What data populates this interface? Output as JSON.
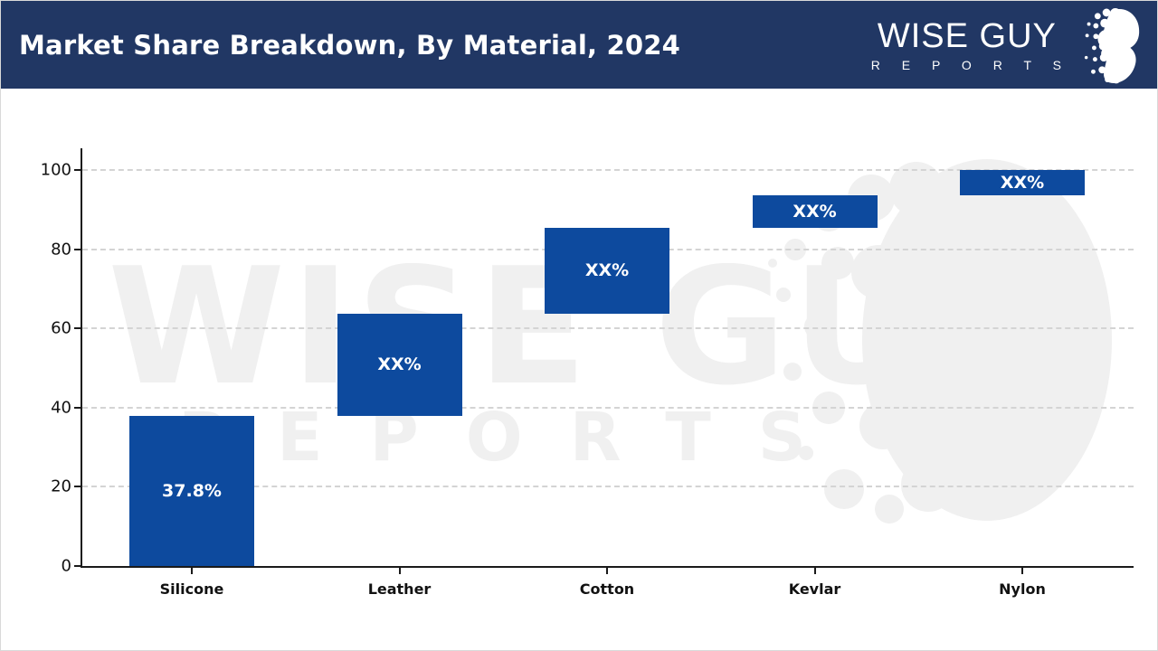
{
  "header": {
    "title": "Market Share Breakdown, By Material, 2024",
    "logo": {
      "wordmark": "WISE GUY",
      "reports": "R E P O R T S"
    }
  },
  "watermark": {
    "line1": "WISE GUY",
    "line2": "REPORTS"
  },
  "chart_data": {
    "type": "bar",
    "subtype": "waterfall",
    "title": "Market Share Breakdown, By Material, 2024",
    "categories": [
      "Silicone",
      "Leather",
      "Cotton",
      "Kevlar",
      "Nylon"
    ],
    "segments": [
      {
        "category": "Silicone",
        "start": 0,
        "end": 37.8,
        "label": "37.8%"
      },
      {
        "category": "Leather",
        "start": 37.8,
        "end": 63.8,
        "label": "XX%"
      },
      {
        "category": "Cotton",
        "start": 63.8,
        "end": 85.3,
        "label": "XX%"
      },
      {
        "category": "Kevlar",
        "start": 85.3,
        "end": 93.5,
        "label": "XX%"
      },
      {
        "category": "Nylon",
        "start": 93.5,
        "end": 100,
        "label": "XX%"
      }
    ],
    "yticks": [
      0,
      20,
      40,
      60,
      80,
      100
    ],
    "ylim": [
      0,
      105.5
    ],
    "xlabel": "",
    "ylabel": "",
    "grid": "horizontal-dashed",
    "legend": "none",
    "bar_color": "#0d4a9e",
    "bar_label_color": "#ffffff"
  },
  "colors": {
    "header_bg": "#213764",
    "bar": "#0d4a9e",
    "axis": "#1a1a1a",
    "gridline": "#d4d4d4",
    "watermark": "#f0f0f0",
    "page_border": "#d9d9d9"
  }
}
